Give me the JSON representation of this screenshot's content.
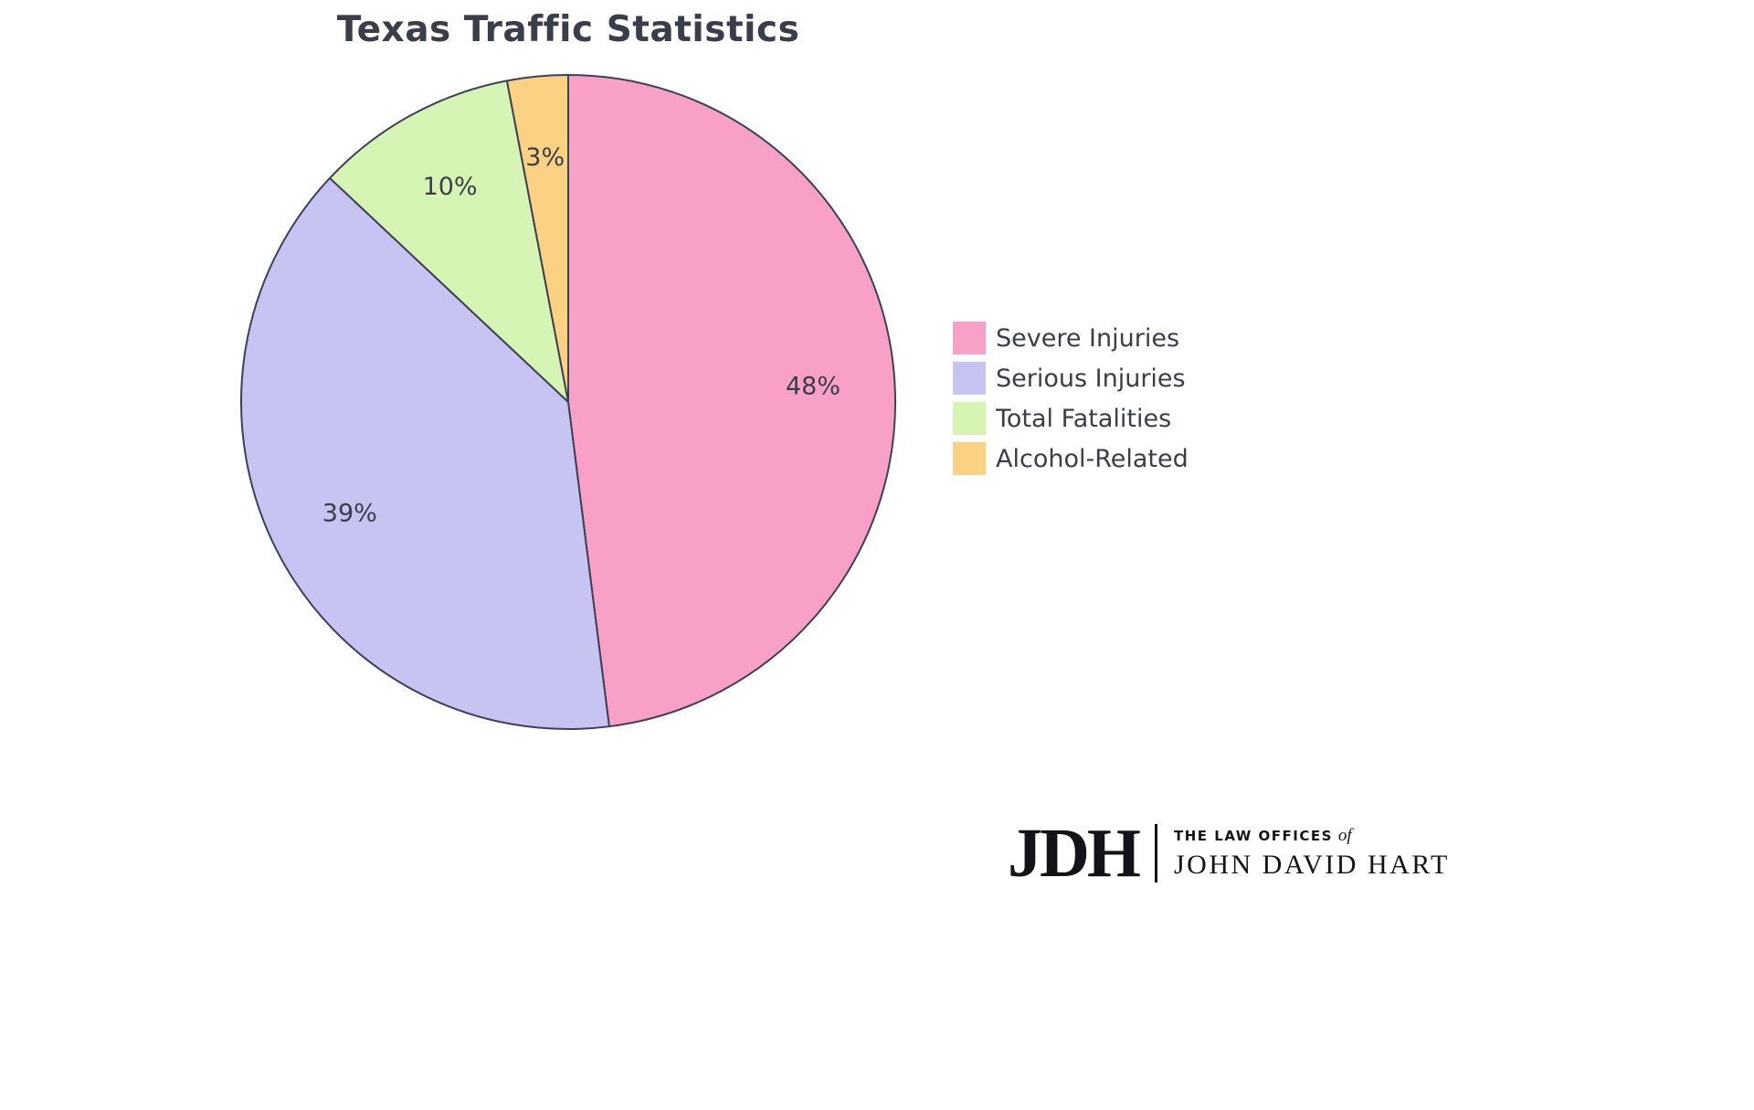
{
  "chart_data": {
    "type": "pie",
    "title": "Texas Traffic Statistics",
    "labels": [
      "Severe Injuries",
      "Serious Injuries",
      "Total Fatalities",
      "Alcohol-Related"
    ],
    "values": [
      48,
      39,
      10,
      3
    ],
    "unit": "%",
    "slice_labels": [
      "48%",
      "39%",
      "10%",
      "3%"
    ],
    "colors": [
      "#F9A0C8",
      "#C7C3F3",
      "#D6F5B4",
      "#FBD284"
    ],
    "stroke_color": "#3D4156",
    "start_angle_deg": 0,
    "direction": "clockwise",
    "legend_position": "right",
    "label_color": "#3A3E4B"
  },
  "branding": {
    "monogram": "JDH",
    "line1_prefix": "THE LAW OFFICES",
    "line1_of": "of",
    "line2": "JOHN DAVID HART"
  },
  "colors": {
    "background": "#FFFFFF",
    "title_text": "#3A3E4B",
    "logo_text": "#141418"
  }
}
